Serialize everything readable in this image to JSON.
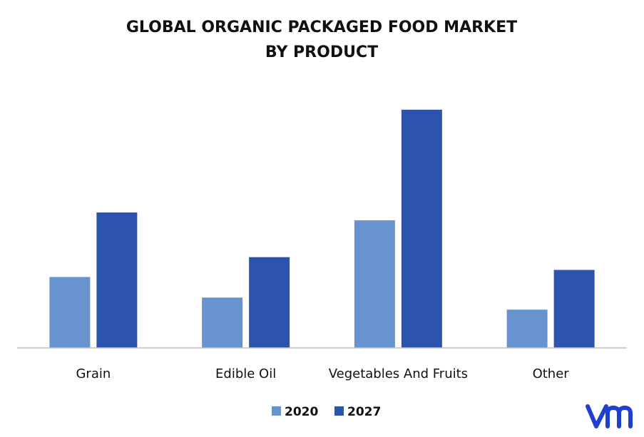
{
  "chart_data": {
    "type": "bar",
    "title": "GLOBAL ORGANIC PACKAGED FOOD MARKET",
    "subtitle": "BY PRODUCT",
    "categories": [
      "Grain",
      "Edible Oil",
      "Vegetables And Fruits",
      "Other"
    ],
    "series": [
      {
        "name": "2020",
        "values": [
          100,
          71,
          180,
          54
        ],
        "color": "#6793cf"
      },
      {
        "name": "2027",
        "values": [
          191,
          128,
          336,
          110
        ],
        "color": "#2c53ad"
      }
    ],
    "ylim": [
      0,
      360
    ],
    "grid": false,
    "legend": "bottom-center",
    "axis_line_color": "#bfbfbf"
  },
  "logo": {
    "text": "vmr",
    "color": "#1f3fd1",
    "icon": "vmr-logo-icon"
  }
}
